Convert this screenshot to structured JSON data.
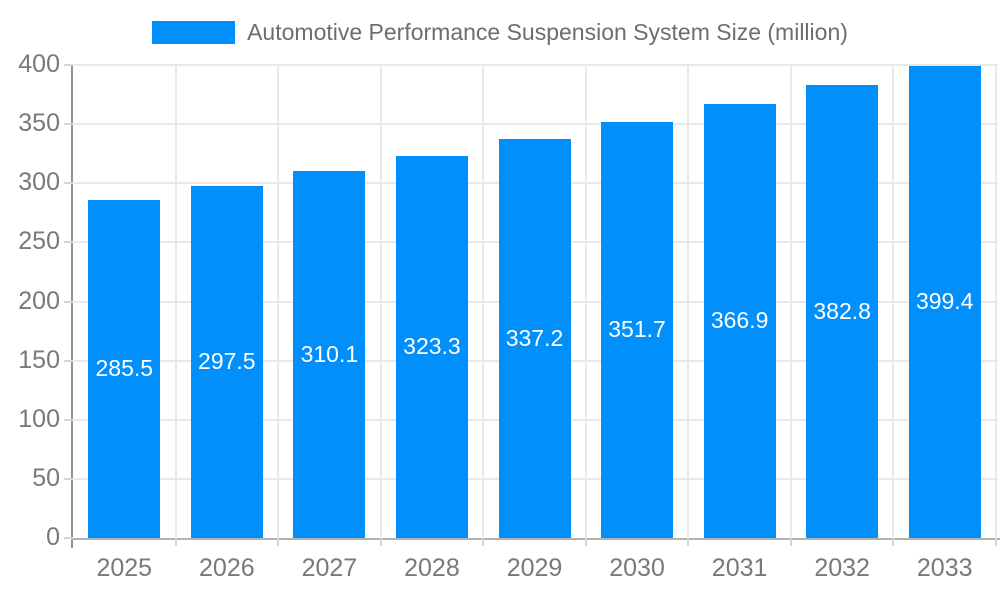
{
  "legend": {
    "label": "Automotive Performance Suspension System Size (million)"
  },
  "chart_data": {
    "type": "bar",
    "title": "Automotive Performance Suspension System Size (million)",
    "series_name": "Automotive Performance Suspension System Size (million)",
    "categories": [
      "2025",
      "2026",
      "2027",
      "2028",
      "2029",
      "2030",
      "2031",
      "2032",
      "2033"
    ],
    "values": [
      285.5,
      297.5,
      310.1,
      323.3,
      337.2,
      351.7,
      366.9,
      382.8,
      399.4
    ],
    "value_labels": [
      "285.5",
      "297.5",
      "310.1",
      "323.3",
      "337.2",
      "351.7",
      "366.9",
      "382.8",
      "399.4"
    ],
    "xlabel": "",
    "ylabel": "",
    "ylim": [
      0,
      400
    ],
    "ytick_step": 50,
    "yticks": [
      0,
      50,
      100,
      150,
      200,
      250,
      300,
      350,
      400
    ],
    "ytick_labels": [
      "0",
      "50",
      "100",
      "150",
      "200",
      "250",
      "300",
      "350",
      "400"
    ],
    "grid": true,
    "legend_position": "top",
    "colors": {
      "bar": "#008FFB",
      "bar_label_text": "#ffffff",
      "axis_label_text": "#77797c",
      "legend_text": "#6b6e71",
      "gridline": "#e9e9e9",
      "tick": "#d5d5d5",
      "y_axis_line": "#8f9092",
      "x_axis_line": "#b2b2b2"
    }
  }
}
